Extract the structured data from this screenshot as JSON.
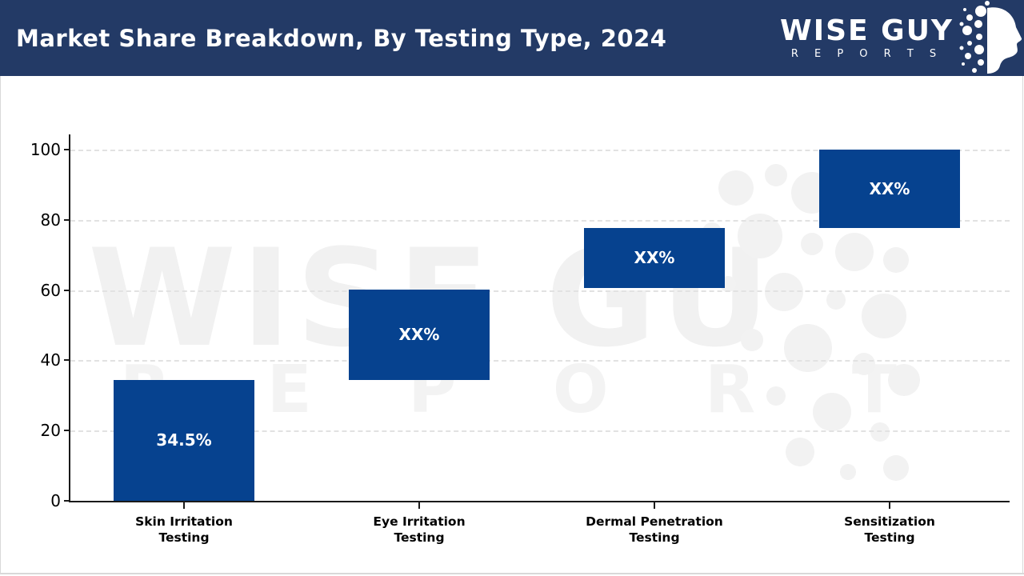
{
  "header": {
    "title": "Market Share Breakdown, By Testing Type, 2024",
    "bg_color": "#233a66",
    "logo": {
      "line1": "WISE GUY",
      "line2": "R E P O R T S"
    }
  },
  "watermark": {
    "line1": "WISE GU",
    "line2": "R E P O R T"
  },
  "chart_data": {
    "type": "bar",
    "subtype": "waterfall",
    "title": "Market Share Breakdown, By Testing Type, 2024",
    "xlabel": "",
    "ylabel": "",
    "ylim": [
      0,
      100
    ],
    "yticks": [
      0,
      20,
      40,
      60,
      80,
      100
    ],
    "grid": "horizontal-dashed",
    "legend": "none",
    "bar_color": "#06428f",
    "bar_label_color": "#ffffff",
    "categories": [
      {
        "line1": "Skin Irritation",
        "line2": "Testing"
      },
      {
        "line1": "Eye Irritation",
        "line2": "Testing"
      },
      {
        "line1": "Dermal Penetration",
        "line2": "Testing"
      },
      {
        "line1": "Sensitization",
        "line2": "Testing"
      }
    ],
    "segments": [
      {
        "category": "Skin Irritation Testing",
        "start": 0,
        "end": 34.5,
        "bar_label": "34.5%"
      },
      {
        "category": "Eye Irritation Testing",
        "start": 34.5,
        "end": 60.2,
        "bar_label": "XX%"
      },
      {
        "category": "Dermal Penetration Testing",
        "start": 60.6,
        "end": 77.7,
        "bar_label": "XX%"
      },
      {
        "category": "Sensitization Testing",
        "start": 77.7,
        "end": 100,
        "bar_label": "XX%"
      }
    ]
  }
}
